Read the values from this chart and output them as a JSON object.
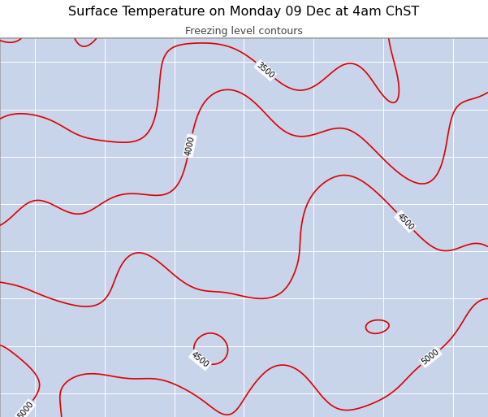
{
  "title": "Surface Temperature on Monday 09 Dec at 4am ChST",
  "subtitle": "Freezing level contours",
  "title_fontsize": 11.5,
  "subtitle_fontsize": 9,
  "background_map_color": "#c8d4ea",
  "contour_color": "#dd0000",
  "contour_linewidth": 1.2,
  "label_fontsize": 7,
  "figure_bg": "#ffffff",
  "grid_color": "#ffffff",
  "grid_linewidth": 0.7,
  "xlim": [
    143.5,
    150.5
  ],
  "ylim": [
    13.5,
    21.5
  ],
  "contour_levels": [
    3000,
    3500,
    4000,
    4500,
    5000
  ],
  "label_levels": [
    3500,
    4000,
    4500,
    5000
  ]
}
